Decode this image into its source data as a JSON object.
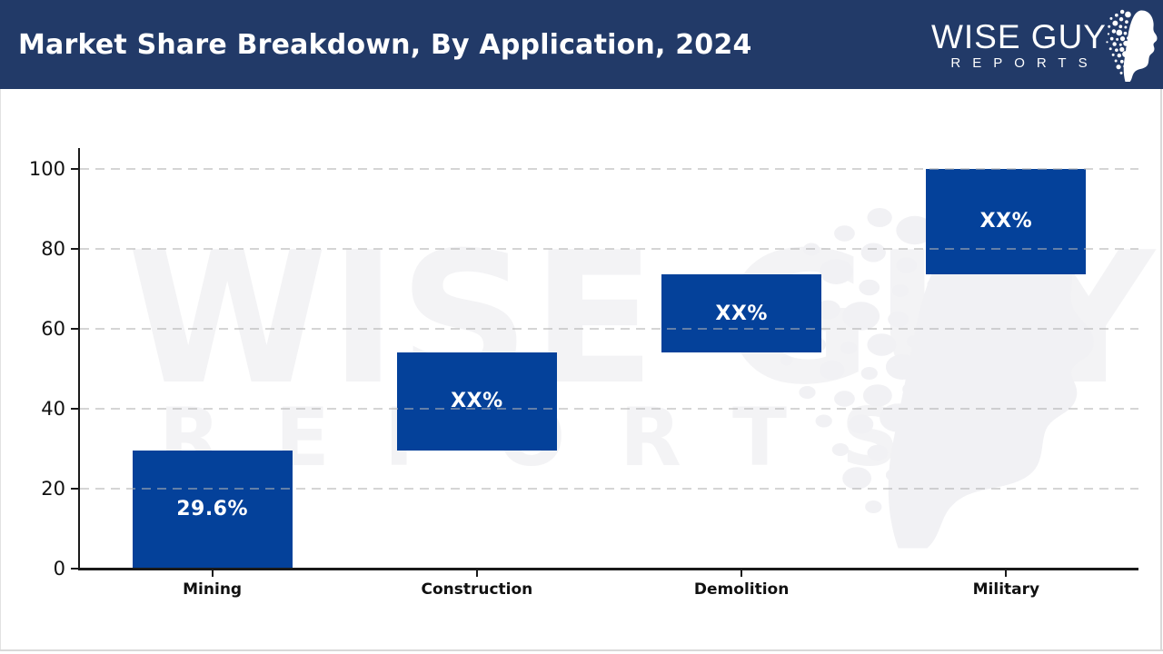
{
  "header": {
    "title": "Market Share Breakdown, By Application, 2024",
    "bg_color": "#223a68",
    "logo": {
      "name": "WISE GUY",
      "tagline": "REPORTS"
    }
  },
  "watermark": {
    "name": "WISE GUY",
    "tagline": "REPORTS"
  },
  "chart_data": {
    "type": "bar",
    "variant": "waterfall",
    "title": "Market Share Breakdown, By Application, 2024",
    "categories": [
      "Mining",
      "Construction",
      "Demolition",
      "Military"
    ],
    "segments": [
      {
        "category": "Mining",
        "start": 0,
        "end": 29.6,
        "label": "29.6%"
      },
      {
        "category": "Construction",
        "start": 29.6,
        "end": 54,
        "label": "XX%"
      },
      {
        "category": "Demolition",
        "start": 54,
        "end": 73.5,
        "label": "XX%"
      },
      {
        "category": "Military",
        "start": 73.5,
        "end": 100,
        "label": "XX%"
      }
    ],
    "xlabel": "",
    "ylabel": "",
    "y_ticks": [
      0,
      20,
      40,
      60,
      80,
      100
    ],
    "ylim": [
      0,
      105
    ],
    "grid": "horizontal-dashed",
    "legend": "none",
    "colors": {
      "bar": "#04419a",
      "bar_label": "#ffffff",
      "axis": "#1a1a1a",
      "gridline": "#d9d9d9",
      "header_bg": "#223a68",
      "watermark": "#f3f3f5"
    }
  }
}
